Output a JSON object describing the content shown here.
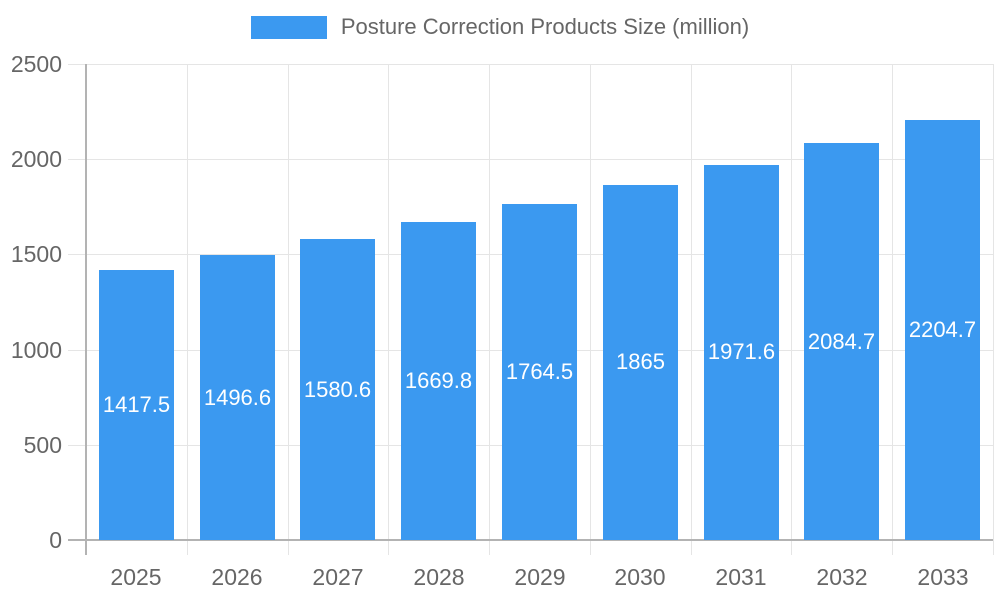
{
  "legend": {
    "label": "Posture Correction Products Size (million)"
  },
  "chart_data": {
    "type": "bar",
    "title": "",
    "xlabel": "",
    "ylabel": "",
    "categories": [
      "2025",
      "2026",
      "2027",
      "2028",
      "2029",
      "2030",
      "2031",
      "2032",
      "2033"
    ],
    "series": [
      {
        "name": "Posture Correction Products Size (million)",
        "values": [
          1417.5,
          1496.6,
          1580.6,
          1669.8,
          1764.5,
          1865,
          1971.6,
          2084.7,
          2204.7
        ]
      }
    ],
    "ylim": [
      0,
      2500
    ],
    "yticks": [
      0,
      500,
      1000,
      1500,
      2000,
      2500
    ],
    "grid": true,
    "legend_position": "top",
    "bar_labels_inside": true,
    "colors": {
      "bar": "#3B99F0",
      "axis_line": "#b3b3b3",
      "gridline": "#e5e5e5",
      "tick_label": "#666666",
      "bar_label": "#ffffff",
      "background": "#ffffff"
    }
  }
}
